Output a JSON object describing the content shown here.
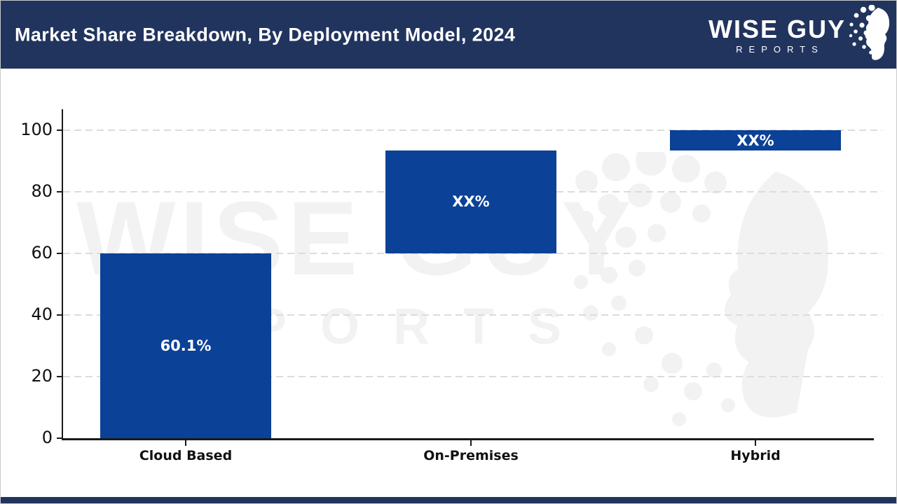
{
  "header": {
    "title": "Market Share Breakdown, By Deployment Model, 2024",
    "logo_line1": "WISE GUY",
    "logo_line2": "REPORTS"
  },
  "watermark": {
    "line1": "WISE GUY",
    "line2": "REPORTS"
  },
  "colors": {
    "header_bg": "#21345e",
    "footer_bg": "#21345e",
    "bar": "#0b4197",
    "bar_label": "#ffffff",
    "grid": "#dcdcdc",
    "axis": "#1a1a1a",
    "watermark": "#f2f2f2"
  },
  "chart_data": {
    "type": "bar",
    "variant": "floating-waterfall",
    "title": "Market Share Breakdown, By Deployment Model, 2024",
    "categories": [
      "Cloud Based",
      "On-Premises",
      "Hybrid"
    ],
    "segments": [
      {
        "category": "Cloud Based",
        "from": 0,
        "to": 60.1,
        "label": "60.1%"
      },
      {
        "category": "On-Premises",
        "from": 60.1,
        "to": 93.5,
        "label": "XX%"
      },
      {
        "category": "Hybrid",
        "from": 93.5,
        "to": 100,
        "label": "XX%"
      }
    ],
    "xlabel": "",
    "ylabel": "",
    "ylim": [
      0,
      100
    ],
    "yticks": [
      0,
      20,
      40,
      60,
      80,
      100
    ],
    "grid": "horizontal-dashed",
    "legend": "none",
    "bar_color": "#0b4197"
  }
}
